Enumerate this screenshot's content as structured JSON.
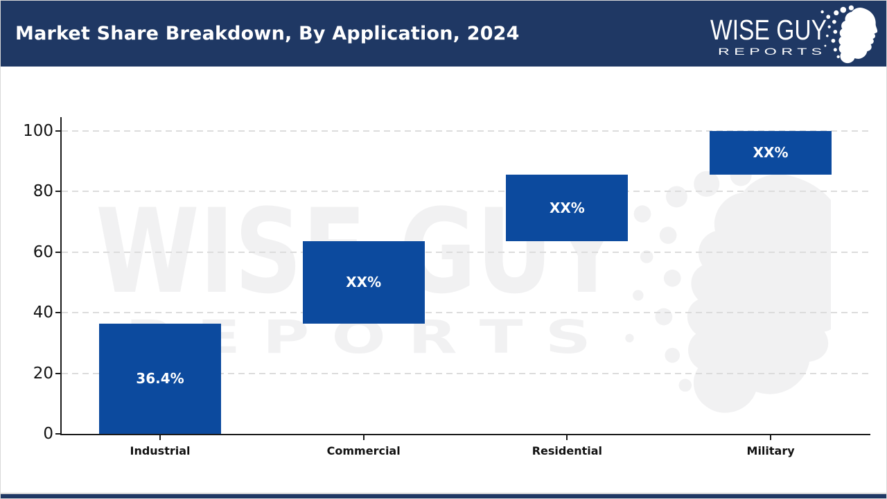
{
  "header": {
    "title": "Market Share Breakdown, By Application, 2024",
    "brand": {
      "line1": "WISE GUY",
      "line2": "R E P O R T S"
    }
  },
  "watermark": {
    "line1": "WISE GUY",
    "line2": "R E P O R T S"
  },
  "colors": {
    "navy": "#1f3864",
    "bar_blue": "#0c4a9e",
    "bar_label": "#ffffff",
    "grid": "#dcdcdc",
    "axis_text": "#111111",
    "watermark": "#f1f1f2"
  },
  "chart_data": {
    "type": "bar",
    "variant": "waterfall-breakdown",
    "title": "Market Share Breakdown, By Application, 2024",
    "categories": [
      "Industrial",
      "Commercial",
      "Residential",
      "Military"
    ],
    "segments": [
      {
        "category": "Industrial",
        "start": 0,
        "end": 36.4,
        "label": "36.4%"
      },
      {
        "category": "Commercial",
        "start": 36.4,
        "end": 63.6,
        "label": "XX%"
      },
      {
        "category": "Residential",
        "start": 63.6,
        "end": 85.4,
        "label": "XX%"
      },
      {
        "category": "Military",
        "start": 85.4,
        "end": 100,
        "label": "XX%"
      }
    ],
    "y_ticks": [
      0,
      20,
      40,
      60,
      80,
      100
    ],
    "ylim": [
      0,
      104
    ],
    "xlabel": "",
    "ylabel": "",
    "grid": "horizontal-dashed",
    "legend": "none",
    "bar_color": "#0c4a9e",
    "bar_label_color": "#ffffff"
  }
}
